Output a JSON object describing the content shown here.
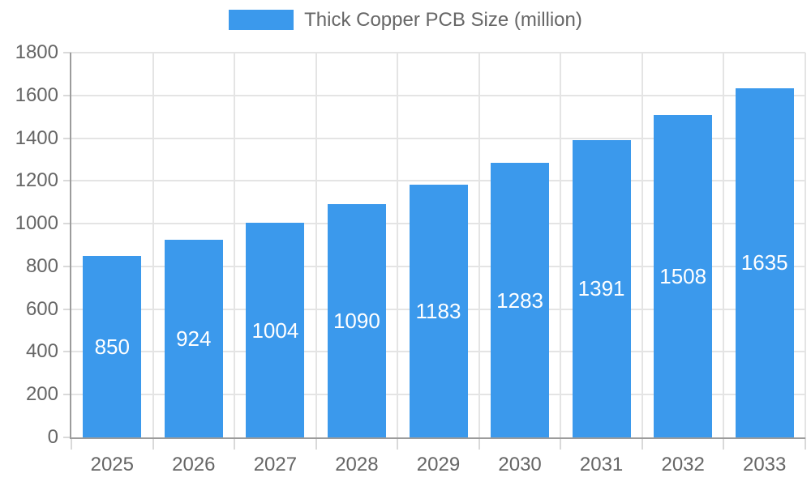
{
  "legend": {
    "label": "Thick Copper PCB Size (million)"
  },
  "colors": {
    "bar": "#3B99EC",
    "grid": "#E4E4E4",
    "tick": "#D9D9D9",
    "axis": "#9C9C9C",
    "text": "#666666",
    "bar_label": "#FFFFFF",
    "background": "#FFFFFF"
  },
  "chart_data": {
    "type": "bar",
    "title": "Thick Copper PCB Size (million)",
    "categories": [
      "2025",
      "2026",
      "2027",
      "2028",
      "2029",
      "2030",
      "2031",
      "2032",
      "2033"
    ],
    "values": [
      850,
      924,
      1004,
      1090,
      1183,
      1283,
      1391,
      1508,
      1635
    ],
    "series_name": "Thick Copper PCB Size (million)",
    "xlabel": "",
    "ylabel": "",
    "ylim": [
      0,
      1800
    ],
    "y_ticks": [
      0,
      200,
      400,
      600,
      800,
      1000,
      1200,
      1400,
      1600,
      1800
    ],
    "grid": "both",
    "legend_position": "top",
    "bar_labels": "inside-center"
  }
}
